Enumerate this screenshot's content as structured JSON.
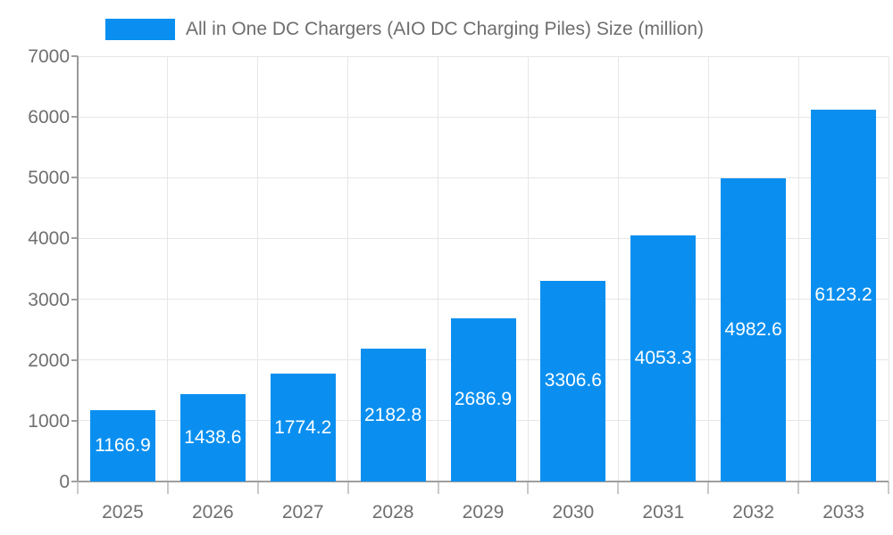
{
  "legend": {
    "label": "All in One DC Chargers (AIO DC Charging Piles) Size (million)"
  },
  "colors": {
    "bar": "#0a8ff0",
    "grid": "#e6e6e6",
    "axis": "#9b9b9b",
    "tick_x": "#c9c9c9",
    "axis_label": "#6f6f6f",
    "title": "#6e6e6e",
    "value_label": "#ffffff",
    "background": "#ffffff"
  },
  "chart_data": {
    "type": "bar",
    "title": "All in One DC Chargers (AIO DC Charging Piles) Size (million)",
    "categories": [
      "2025",
      "2026",
      "2027",
      "2028",
      "2029",
      "2030",
      "2031",
      "2032",
      "2033"
    ],
    "values": [
      1166.9,
      1438.6,
      1774.2,
      2182.8,
      2686.9,
      3306.6,
      4053.3,
      4982.6,
      6123.2
    ],
    "xlabel": "",
    "ylabel": "",
    "ylim": [
      0,
      7000
    ],
    "yticks": [
      0,
      1000,
      2000,
      3000,
      4000,
      5000,
      6000,
      7000
    ],
    "grid": true,
    "legend_position": "top",
    "value_label_style": "white, centered inside bar"
  }
}
